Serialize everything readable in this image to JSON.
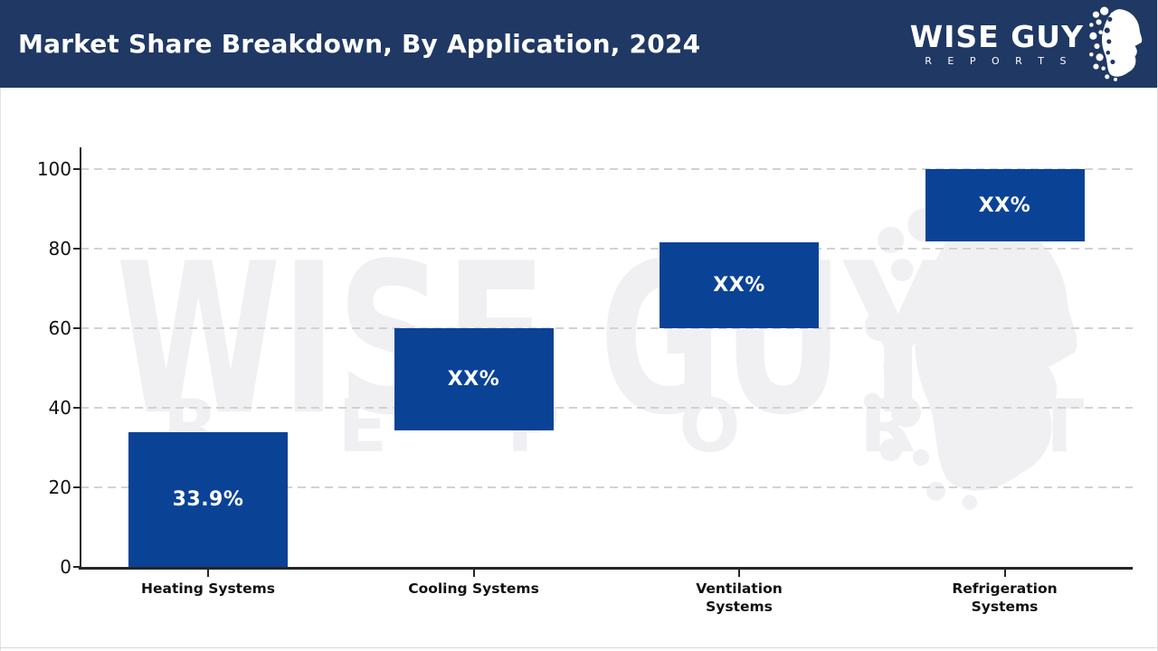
{
  "header": {
    "title": "Market Share Breakdown, By Application, 2024",
    "logo": {
      "name": "WISE GUY",
      "subtitle": "R E P O R T S"
    }
  },
  "watermark": {
    "line1": "WISE GUY",
    "line2": "R E P O R T S"
  },
  "chart_data": {
    "type": "bar",
    "subtype": "waterfall",
    "title": "Market Share Breakdown, By Application, 2024",
    "categories": [
      "Heating Systems",
      "Cooling Systems",
      "Ventilation Systems",
      "Refrigeration Systems"
    ],
    "category_lines": [
      [
        "Heating Systems"
      ],
      [
        "Cooling Systems"
      ],
      [
        "Ventilation",
        "Systems"
      ],
      [
        "Refrigeration",
        "Systems"
      ]
    ],
    "segments": [
      {
        "category": "Heating Systems",
        "start": 0,
        "end": 33.9,
        "label": "33.9%"
      },
      {
        "category": "Cooling Systems",
        "start": 34.3,
        "end": 60,
        "label": "XX%"
      },
      {
        "category": "Ventilation Systems",
        "start": 60,
        "end": 81.5,
        "label": "XX%"
      },
      {
        "category": "Refrigeration Systems",
        "start": 81.8,
        "end": 100,
        "label": "XX%"
      }
    ],
    "ylim": [
      0,
      100
    ],
    "yticks": [
      0,
      20,
      40,
      60,
      80,
      100
    ],
    "xlabel": "",
    "ylabel": "",
    "grid": "horizontal-dashed",
    "legend": "none",
    "bar_color": "#0a4296",
    "bar_label_color": "#ffffff"
  },
  "colors": {
    "header_bg": "#1f3864",
    "bar": "#0a4296",
    "axis": "#262626",
    "gridline": "#d2d2d2",
    "watermark": "#f0f0f3"
  }
}
